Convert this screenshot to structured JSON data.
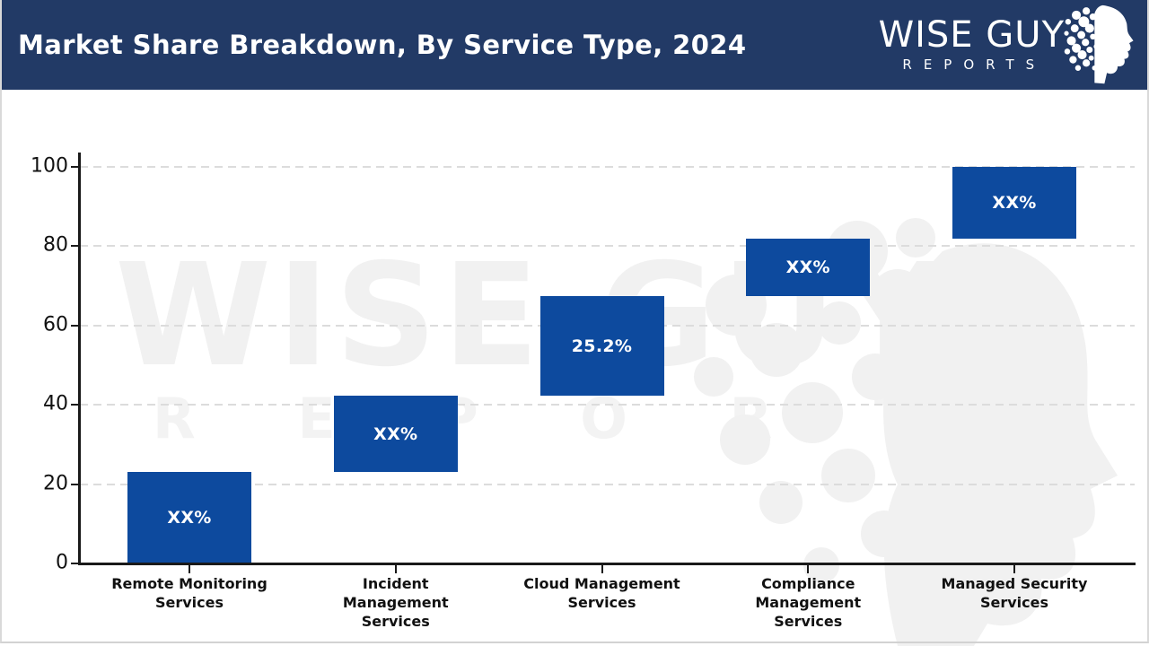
{
  "header": {
    "title": "Market Share Breakdown, By Service Type, 2024",
    "logo": {
      "wordmark": "WISE GUY",
      "subtitle": "REPORTS"
    }
  },
  "watermark": {
    "line1": "WISE GUY",
    "line2": "R E P O R T S"
  },
  "colors": {
    "header_bg": "#223a66",
    "bar_fill": "#0d4a9e",
    "bar_label": "#ffffff",
    "grid": "#dcdcdc",
    "axis": "#1a1a1a",
    "watermark": "#f1f1f1"
  },
  "chart_data": {
    "type": "bar",
    "subtype": "floating-waterfall",
    "title": "Market Share Breakdown, By Service Type, 2024",
    "categories": [
      "Remote Monitoring Services",
      "Incident Management Services",
      "Cloud Management Services",
      "Compliance Management Services",
      "Managed Security Services"
    ],
    "category_label_lines": [
      [
        "Remote Monitoring",
        "Services"
      ],
      [
        "Incident",
        "Management",
        "Services"
      ],
      [
        "Cloud Management",
        "Services"
      ],
      [
        "Compliance",
        "Management",
        "Services"
      ],
      [
        "Managed Security",
        "Services"
      ]
    ],
    "segments": [
      {
        "category": "Remote Monitoring Services",
        "start": 0,
        "end": 23,
        "label": "XX%"
      },
      {
        "category": "Incident Management Services",
        "start": 23,
        "end": 42.2,
        "label": "XX%"
      },
      {
        "category": "Cloud Management Services",
        "start": 42.2,
        "end": 67.4,
        "label": "25.2%"
      },
      {
        "category": "Compliance Management Services",
        "start": 67.4,
        "end": 82,
        "label": "XX%"
      },
      {
        "category": "Managed Security Services",
        "start": 82,
        "end": 100,
        "label": "XX%"
      }
    ],
    "ylim": [
      0,
      100
    ],
    "yticks": [
      0,
      20,
      40,
      60,
      80,
      100
    ],
    "xlabel": "",
    "ylabel": "",
    "grid": "dashed-horizontal",
    "legend": "none"
  }
}
